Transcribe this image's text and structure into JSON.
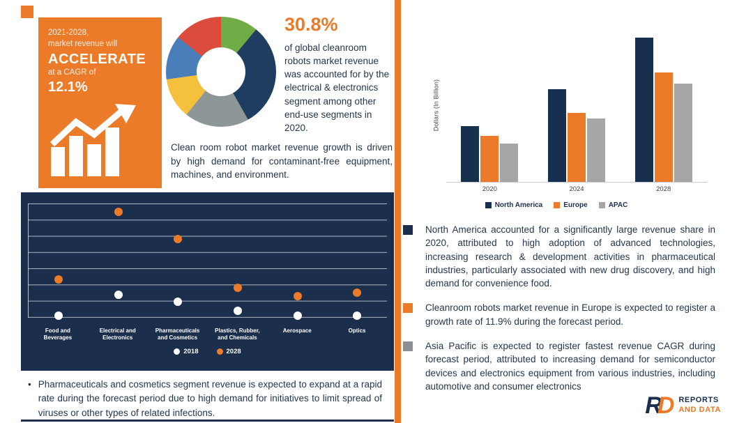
{
  "colors": {
    "orange": "#EB7B28",
    "navy": "#1B2E4B",
    "gray": "#A6A6A6",
    "body_text": "#24364A"
  },
  "left": {
    "accelerate": {
      "line1": "2021-2028,",
      "line2": "market revenue will",
      "line3": "ACCELERATE",
      "line4": "at a CAGR of",
      "line5": "12.1%"
    },
    "stat": {
      "value": "30.8%",
      "description": "of global cleanroom robots market revenue was accounted for by the electrical & electronics segment among other end-use segments in 2020."
    },
    "growth_paragraph": "Clean room robot market revenue growth is driven by high demand for contaminant-free equipment, machines, and environment.",
    "bottom_bullet": {
      "marker": "•",
      "text": "Pharmaceuticals and cosmetics segment revenue is expected to expand at a rapid rate during the forecast period due to high demand for initiatives to limit spread of viruses or other types of related infections."
    }
  },
  "right": {
    "bullets": [
      {
        "color": "#1B2E4B",
        "text": "North America accounted for a significantly large revenue share in 2020, attributed to high adoption of advanced technologies, increasing research & development activities in pharmaceutical industries, particularly associated with new drug discovery, and high demand for convenience food."
      },
      {
        "color": "#EB7B28",
        "text": "Cleanroom robots market revenue in Europe is expected to register a growth rate of 11.9% during the forecast period."
      },
      {
        "color": "#8C9094",
        "text": "Asia Pacific is expected to register fastest revenue CAGR during forecast period, attributed to increasing demand for semiconductor devices and electronics equipment from various industries, including automotive and consumer electronics"
      }
    ],
    "logo": {
      "mark_r": "R",
      "mark_d": "D",
      "line1": "REPORTS",
      "line2": "AND DATA"
    }
  },
  "chart_data": [
    {
      "id": "end_use_donut",
      "type": "pie",
      "donut": true,
      "start_angle_deg": 0,
      "slices": [
        {
          "label": "segment-green",
          "value": 11.0,
          "color": "#70AD47"
        },
        {
          "label": "electrical-and-electronics",
          "value": 30.8,
          "color": "#1F3D60"
        },
        {
          "label": "segment-gray",
          "value": 19.0,
          "color": "#8E9798"
        },
        {
          "label": "segment-yellow",
          "value": 12.0,
          "color": "#F5C13D"
        },
        {
          "label": "segment-blue",
          "value": 13.0,
          "color": "#4A7EBB"
        },
        {
          "label": "segment-red",
          "value": 14.2,
          "color": "#DB4C3C"
        }
      ]
    },
    {
      "id": "segment_dot_plot",
      "type": "scatter",
      "categories": [
        "Food and Beverages",
        "Electrical and Electronics",
        "Pharmaceuticals and Cosmetics",
        "Plastics, Rubber, and Chemicals",
        "Aerospace",
        "Optics"
      ],
      "series": [
        {
          "name": "2018",
          "color": "#FFFFFF",
          "values": [
            0.15,
            1.6,
            1.1,
            0.5,
            0.15,
            0.15
          ]
        },
        {
          "name": "2028",
          "color": "#EB7B28",
          "values": [
            2.7,
            7.4,
            5.5,
            2.1,
            1.5,
            1.75
          ]
        }
      ],
      "ylim": [
        0,
        8
      ],
      "gridlines": 8,
      "grid": true,
      "legend_position": "bottom"
    },
    {
      "id": "regional_bar_chart",
      "type": "bar",
      "categories": [
        "2020",
        "2024",
        "2028"
      ],
      "series": [
        {
          "name": "North America",
          "color": "#17304F",
          "values": [
            2.9,
            4.8,
            7.5
          ]
        },
        {
          "name": "Europe",
          "color": "#EB7B28",
          "values": [
            2.4,
            3.6,
            5.7
          ]
        },
        {
          "name": "APAC",
          "color": "#A6A6A6",
          "values": [
            2.0,
            3.3,
            5.1
          ]
        }
      ],
      "ylabel": "Dollars (In Billion)",
      "ylim": [
        0,
        8
      ],
      "grid": false,
      "legend_position": "bottom"
    }
  ]
}
